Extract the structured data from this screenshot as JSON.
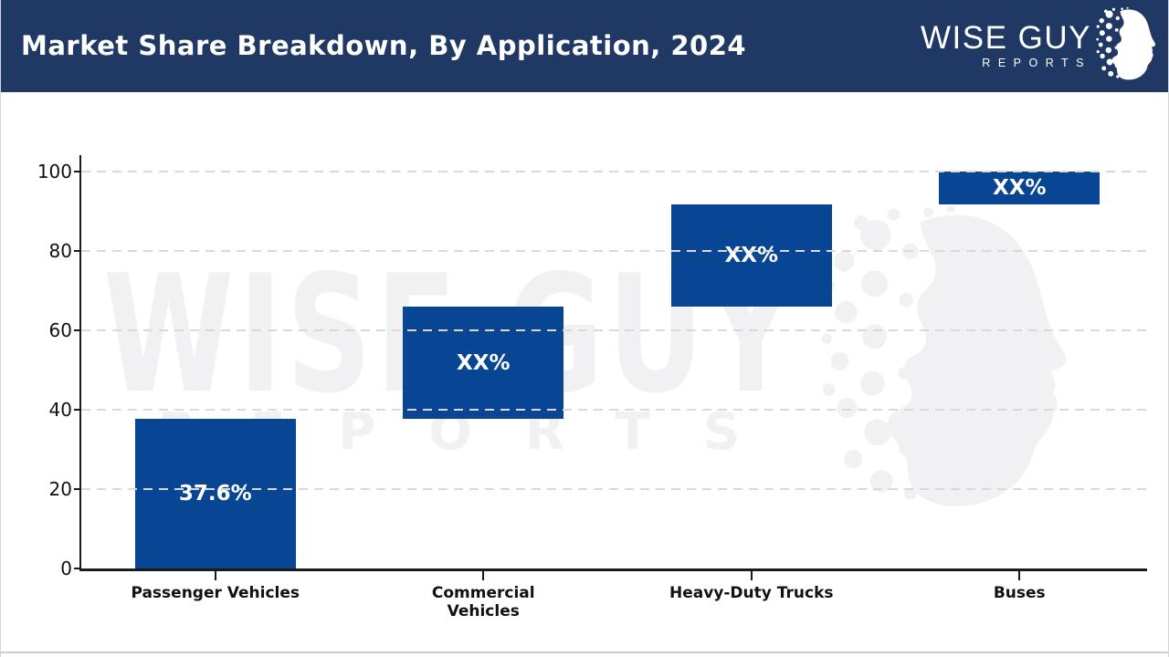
{
  "header": {
    "title": "Market Share Breakdown, By Application, 2024",
    "logo": {
      "name": "WISE GUY",
      "subtitle": "REPORTS"
    }
  },
  "watermark": {
    "name": "WISE GUY",
    "subtitle": "REPORTS"
  },
  "colors": {
    "header_bg": "#203864",
    "bar_blue": "#084693",
    "grid_gray": "#d9d9d9",
    "axis_black": "#1a1a1a",
    "watermark_gray": "#f1f1f3",
    "label_white": "#ffffff"
  },
  "chart_data": {
    "type": "bar",
    "subtype": "floating-waterfall",
    "title": "Market Share Breakdown, By Application, 2024",
    "categories": [
      "Passenger Vehicles",
      "Commercial\nVehicles",
      "Heavy-Duty Trucks",
      "Buses"
    ],
    "series": [
      {
        "name": "Market Share (%)",
        "segments": [
          {
            "category": "Passenger Vehicles",
            "from": 0,
            "to": 37.6,
            "label": "37.6%"
          },
          {
            "category": "Commercial Vehicles",
            "from": 37.6,
            "to": 66,
            "label": "XX%"
          },
          {
            "category": "Heavy-Duty Trucks",
            "from": 66,
            "to": 91.7,
            "label": "XX%"
          },
          {
            "category": "Buses",
            "from": 91.7,
            "to": 100,
            "label": "XX%"
          }
        ]
      }
    ],
    "xlabel": "",
    "ylabel": "",
    "ylim": [
      0,
      100
    ],
    "yticks": [
      0,
      20,
      40,
      60,
      80,
      100
    ],
    "grid": true,
    "grid_style": "dashed",
    "legend": false
  }
}
